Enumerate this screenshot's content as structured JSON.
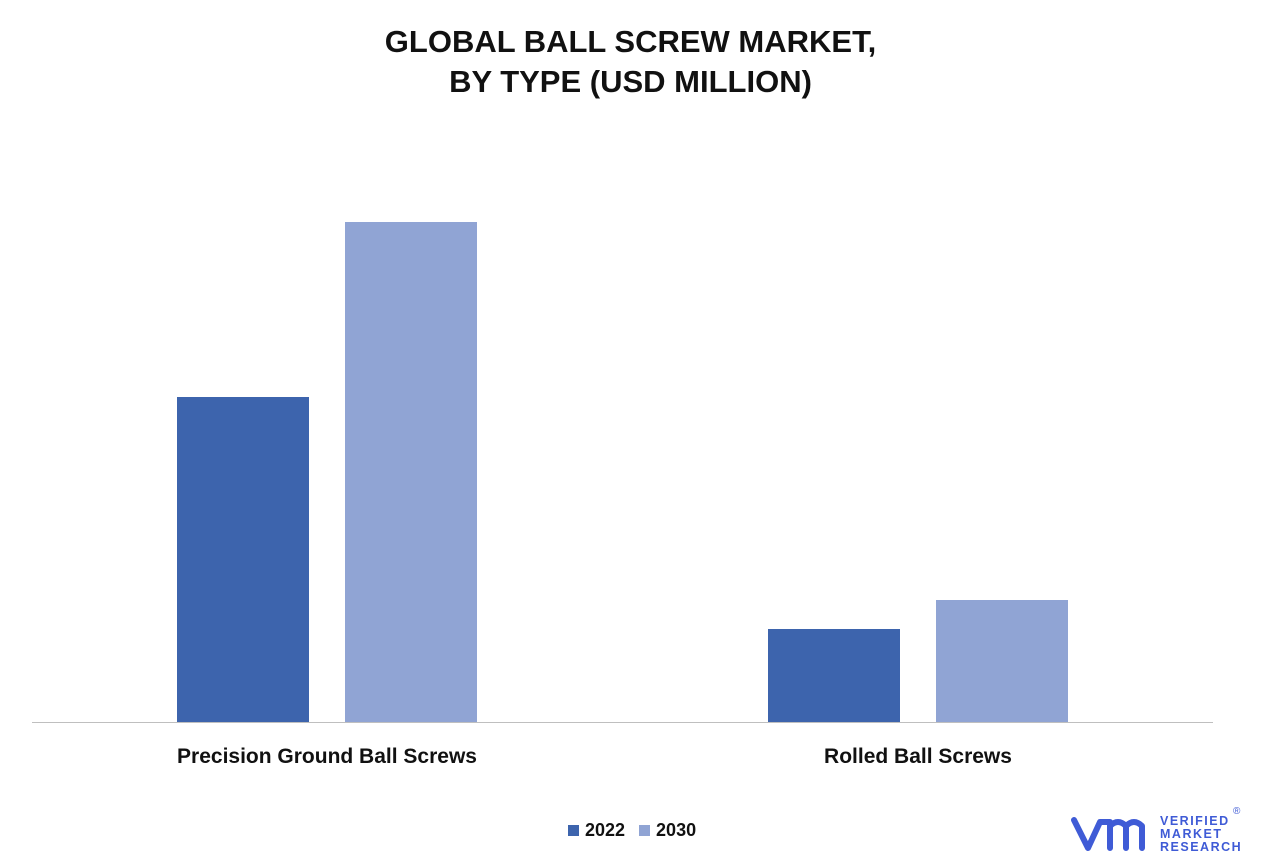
{
  "chart_data": {
    "type": "bar",
    "title_lines": [
      "GLOBAL BALL SCREW MARKET,",
      "BY TYPE (USD MILLION)"
    ],
    "categories": [
      "Precision Ground Ball Screws",
      "Rolled Ball Screws"
    ],
    "series": [
      {
        "name": "2022",
        "values": [
          325,
          93
        ],
        "color": "#3d64ad"
      },
      {
        "name": "2030",
        "values": [
          500,
          122
        ],
        "color": "#90a4d4"
      }
    ],
    "ylim": [
      0,
      600
    ],
    "grid": false,
    "legend_position": "bottom-center"
  },
  "branding": {
    "logo_icon": "vmr-logo-icon",
    "lines": [
      "VERIFIED",
      "MARKET",
      "RESEARCH"
    ],
    "registered_mark": "®",
    "color": "#3f5bd6"
  }
}
